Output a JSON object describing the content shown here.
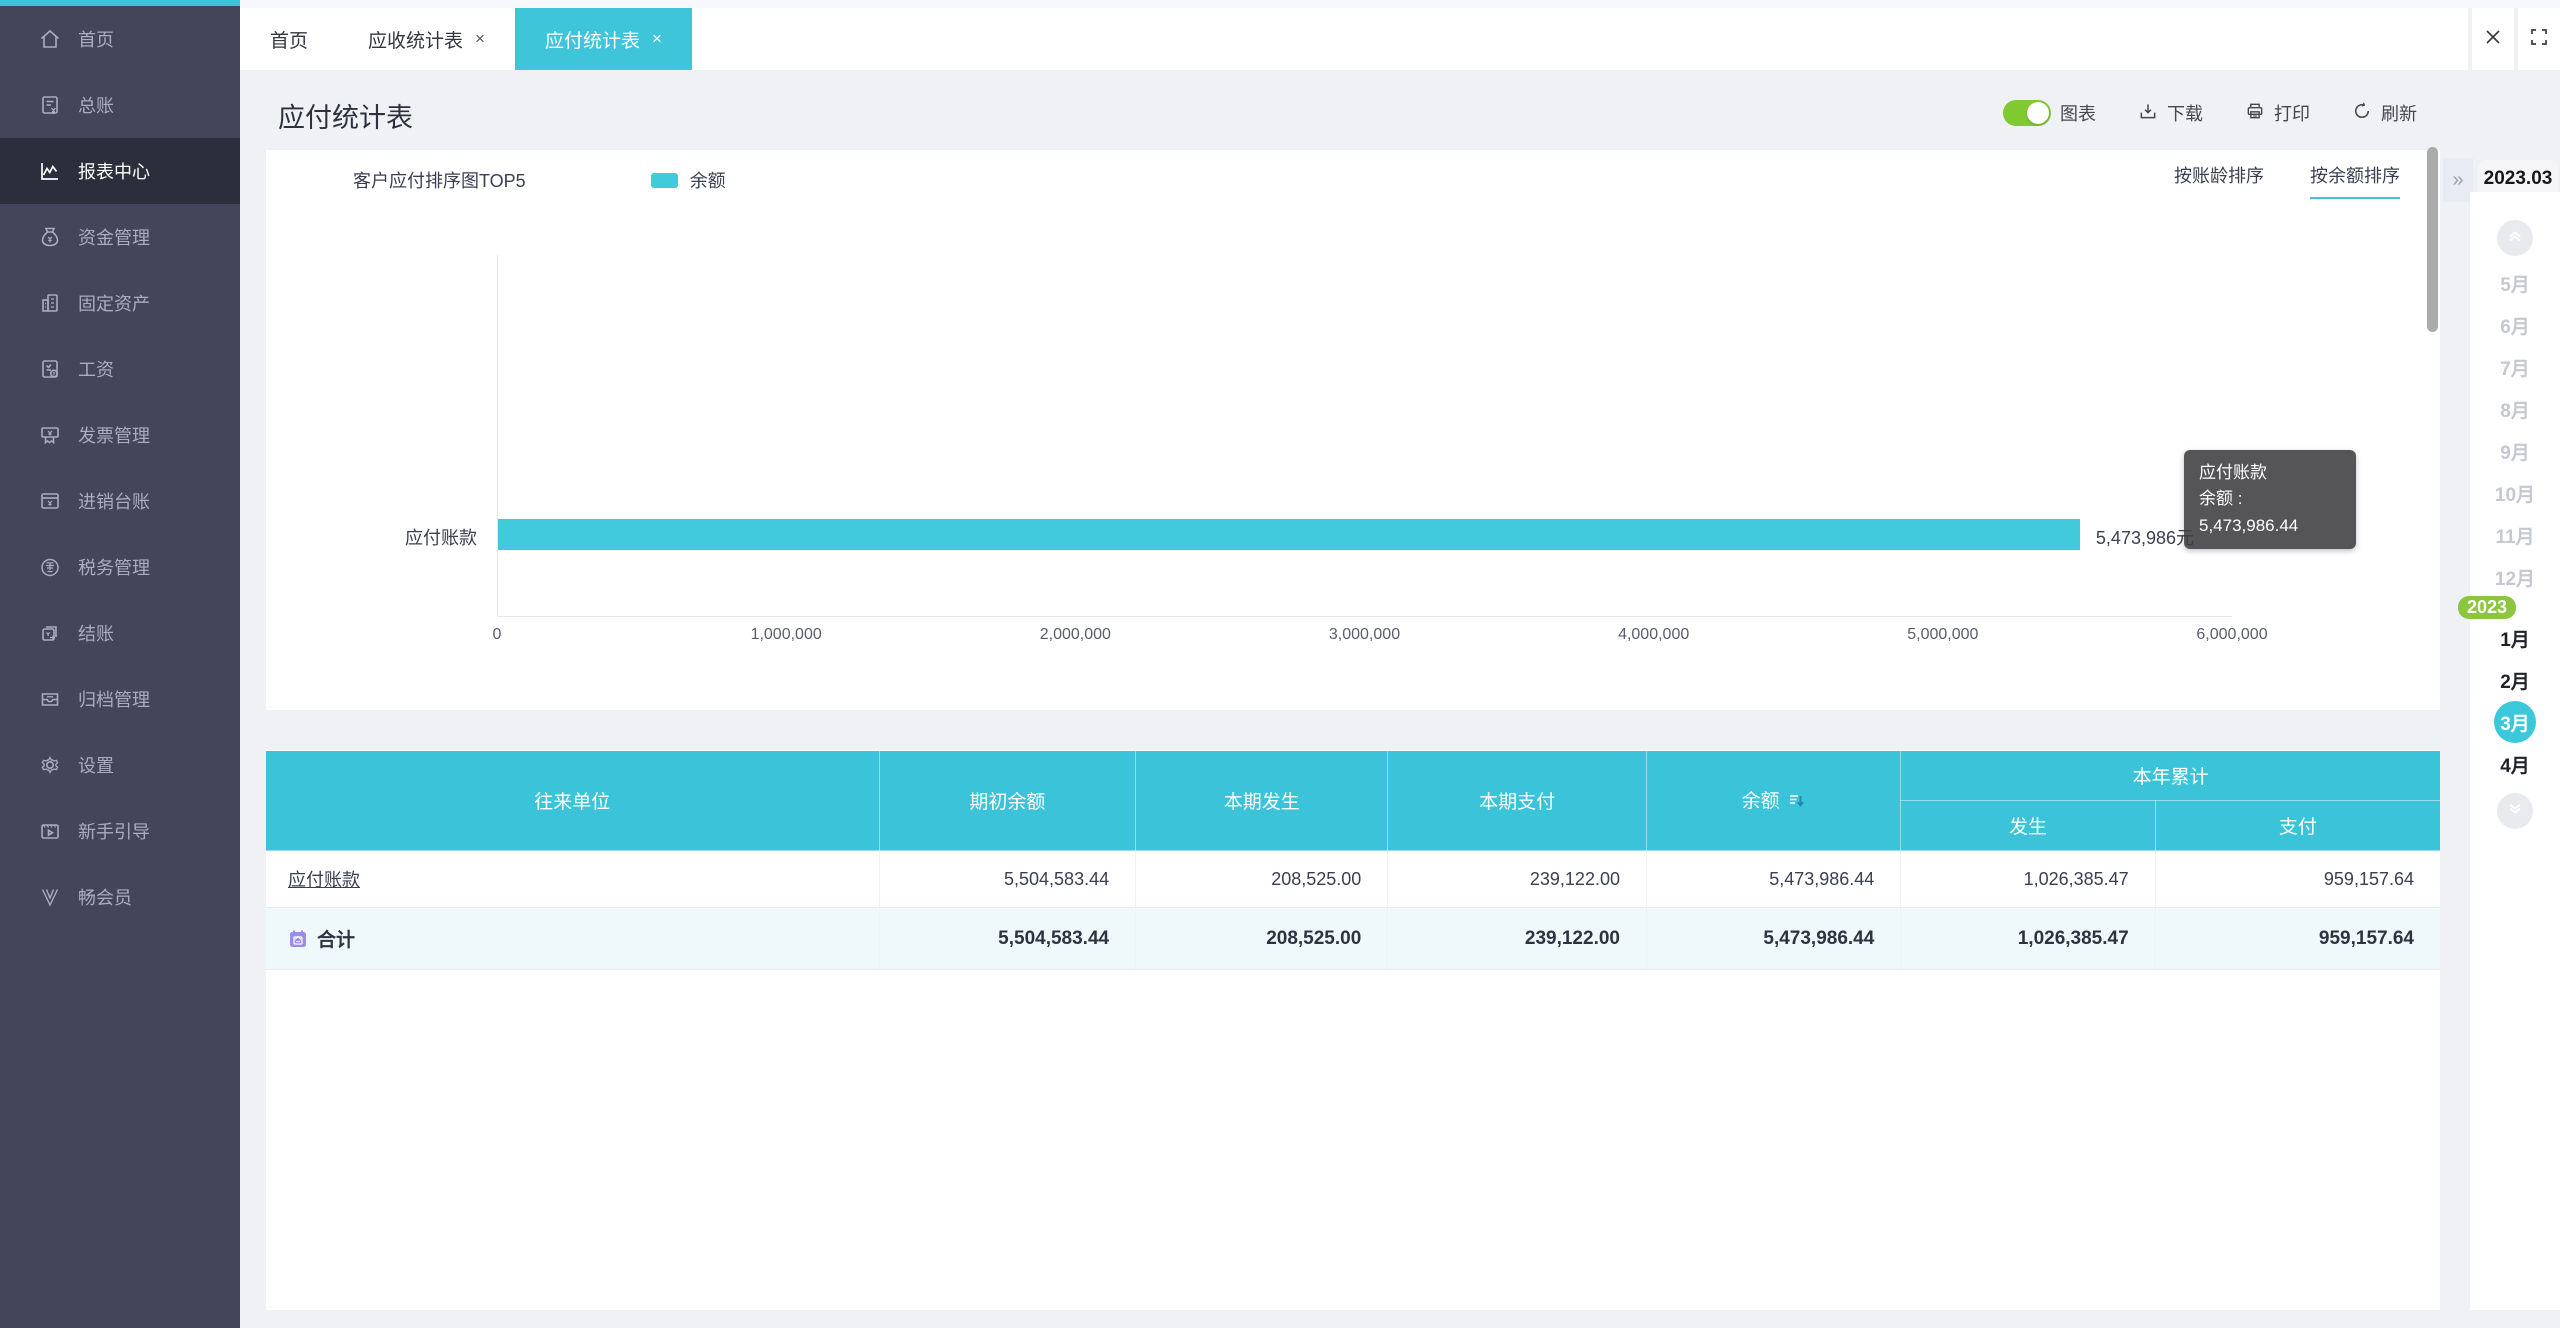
{
  "tabs": [
    {
      "label": "首页",
      "closable": false,
      "active": false
    },
    {
      "label": "应收统计表",
      "closable": true,
      "active": false
    },
    {
      "label": "应付统计表",
      "closable": true,
      "active": true
    }
  ],
  "tab_close_glyph": "×",
  "sidebar": {
    "items": [
      {
        "label": "首页",
        "active": false
      },
      {
        "label": "总账",
        "active": false
      },
      {
        "label": "报表中心",
        "active": true
      },
      {
        "label": "资金管理",
        "active": false
      },
      {
        "label": "固定资产",
        "active": false
      },
      {
        "label": "工资",
        "active": false
      },
      {
        "label": "发票管理",
        "active": false
      },
      {
        "label": "进销台账",
        "active": false
      },
      {
        "label": "税务管理",
        "active": false
      },
      {
        "label": "结账",
        "active": false
      },
      {
        "label": "归档管理",
        "active": false
      },
      {
        "label": "设置",
        "active": false
      },
      {
        "label": "新手引导",
        "active": false
      },
      {
        "label": "畅会员",
        "active": false
      }
    ]
  },
  "page": {
    "title": "应付统计表"
  },
  "toolbar": {
    "chart_toggle_label": "图表",
    "toggle_on": true,
    "download_label": "下载",
    "print_label": "打印",
    "refresh_label": "刷新"
  },
  "chart_header": {
    "title": "客户应付排序图TOP5",
    "legend_label": "余额",
    "sort_by_age": "按账龄排序",
    "sort_by_balance": "按余额排序",
    "active_sort": "按余额排序"
  },
  "chart_data": {
    "type": "bar",
    "orientation": "horizontal",
    "title": "客户应付排序图TOP5",
    "categories": [
      "应付账款"
    ],
    "series": [
      {
        "name": "余额",
        "values": [
          5473986.44
        ]
      }
    ],
    "values": [
      5473986.44
    ],
    "bar_label": "5,473,986元",
    "bar_color": "#41C9DC",
    "xlim": [
      0,
      6000000
    ],
    "xticks": [
      0,
      1000000,
      2000000,
      3000000,
      4000000,
      5000000,
      6000000
    ],
    "xtick_labels": [
      "0",
      "1,000,000",
      "2,000,000",
      "3,000,000",
      "4,000,000",
      "5,000,000",
      "6,000,000"
    ],
    "grid": false,
    "legend_position": "top",
    "tooltip": {
      "title": "应付账款",
      "line": "余额 : 5,473,986.44"
    }
  },
  "table": {
    "columns": [
      "往来单位",
      "期初余额",
      "本期发生",
      "本期支付",
      "余额",
      "本年累计"
    ],
    "subcolumns": [
      "发生",
      "支付"
    ],
    "rows": [
      {
        "name": "应付账款",
        "values": [
          "5,504,583.44",
          "208,525.00",
          "239,122.00",
          "5,473,986.44",
          "1,026,385.47",
          "959,157.64"
        ]
      },
      {
        "name": "合计",
        "values": [
          "5,504,583.44",
          "208,525.00",
          "239,122.00",
          "5,473,986.44",
          "1,026,385.47",
          "959,157.64"
        ]
      }
    ]
  },
  "month_panel": {
    "current": "2023.03",
    "collapse_glyph": "»",
    "year_badge": "2023",
    "months": [
      {
        "label": "5月",
        "state": "disabled"
      },
      {
        "label": "6月",
        "state": "disabled"
      },
      {
        "label": "7月",
        "state": "disabled"
      },
      {
        "label": "8月",
        "state": "disabled"
      },
      {
        "label": "9月",
        "state": "disabled"
      },
      {
        "label": "10月",
        "state": "disabled"
      },
      {
        "label": "11月",
        "state": "disabled"
      },
      {
        "label": "12月",
        "state": "disabled"
      },
      {
        "label": "1月",
        "state": "normal"
      },
      {
        "label": "2月",
        "state": "normal"
      },
      {
        "label": "3月",
        "state": "selected"
      },
      {
        "label": "4月",
        "state": "normal"
      }
    ]
  },
  "colors": {
    "accent_cyan": "#3CC5DA",
    "bar_cyan": "#41C9DC",
    "sidebar_bg": "#43455A",
    "sidebar_active_bg": "#2B2E3B",
    "toggle_green": "#7FC931",
    "year_badge_green": "#8CC63E",
    "total_row_bg": "#EFF8FB",
    "tooltip_bg": "#3E3E40"
  }
}
